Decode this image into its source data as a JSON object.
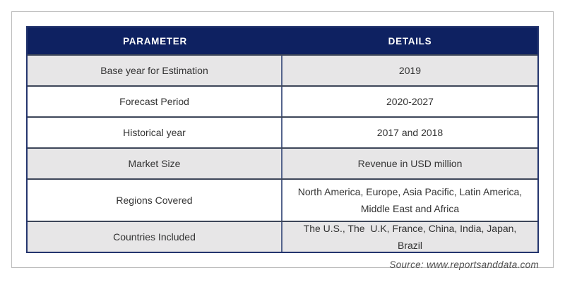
{
  "table": {
    "headers": [
      "PARAMETER",
      "DETAILS"
    ],
    "rows": [
      {
        "parameter": "Base year for Estimation",
        "details": "2019"
      },
      {
        "parameter": "Forecast Period",
        "details": "2020-2027"
      },
      {
        "parameter": "Historical year",
        "details": "2017 and 2018"
      },
      {
        "parameter": "Market Size",
        "details": "Revenue in USD million"
      },
      {
        "parameter": "Regions Covered",
        "details": "North America, Europe, Asia Pacific, Latin America, Middle East and Africa"
      },
      {
        "parameter": "Countries Included",
        "details": "The U.S., The  U.K, France, China, India, Japan, Brazil"
      }
    ]
  },
  "footer": {
    "source_note": "Source: www.reportsanddata.com"
  },
  "colors": {
    "header_bg": "#0e2161",
    "header_text": "#ffffff",
    "shaded_row_bg": "#e7e6e7",
    "table_outer_border": "#24356e",
    "row_border": "#3d4659",
    "column_divider": "#55648c",
    "frame_border": "#bdbdbd",
    "cell_text": "#333333",
    "source_text": "#4f4f4f"
  }
}
